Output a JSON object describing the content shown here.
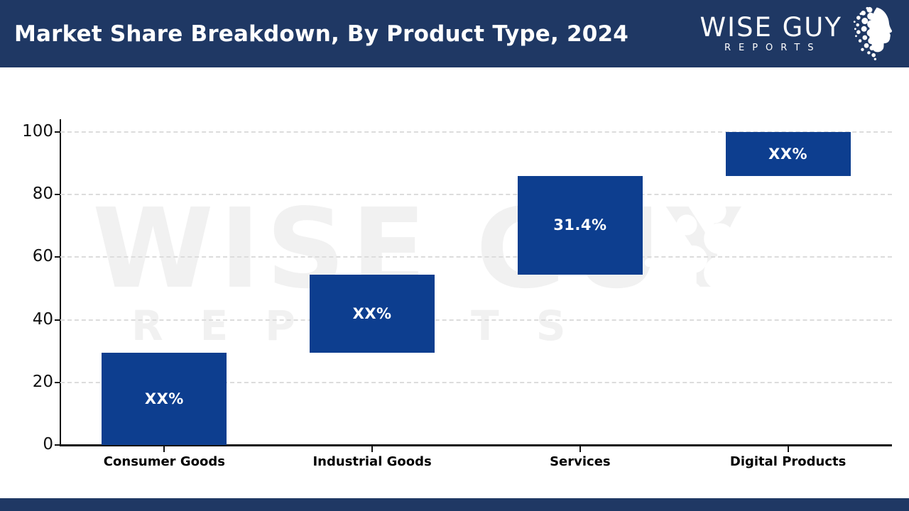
{
  "header": {
    "title": "Market Share Breakdown, By Product Type, 2024",
    "logo": {
      "line1": "WISE GUY",
      "line2": "REPORTS"
    }
  },
  "watermark": {
    "line1": "WISE GUY",
    "line2": "REPORTS"
  },
  "colors": {
    "header_bg": "#1f3864",
    "bar": "#0d3e8f",
    "grid": "#dcdcdc",
    "axis": "#111111",
    "bar_label": "#ffffff",
    "watermark": "#f1f1f1"
  },
  "chart_data": {
    "type": "bar",
    "subtype": "waterfall",
    "title": "Market Share Breakdown, By Product Type, 2024",
    "xlabel": "",
    "ylabel": "",
    "categories": [
      "Consumer Goods",
      "Industrial Goods",
      "Services",
      "Digital Products"
    ],
    "segments": [
      {
        "category": "Consumer Goods",
        "start": 0,
        "end": 29.5,
        "label": "XX%"
      },
      {
        "category": "Industrial Goods",
        "start": 29.5,
        "end": 54.5,
        "label": "XX%"
      },
      {
        "category": "Services",
        "start": 54.5,
        "end": 85.9,
        "label": "31.4%"
      },
      {
        "category": "Digital Products",
        "start": 85.9,
        "end": 100,
        "label": "XX%"
      }
    ],
    "yticks": [
      0,
      20,
      40,
      60,
      80,
      100
    ],
    "ylim": [
      0,
      104
    ],
    "grid": "horizontal-dashed",
    "legend": "none"
  }
}
